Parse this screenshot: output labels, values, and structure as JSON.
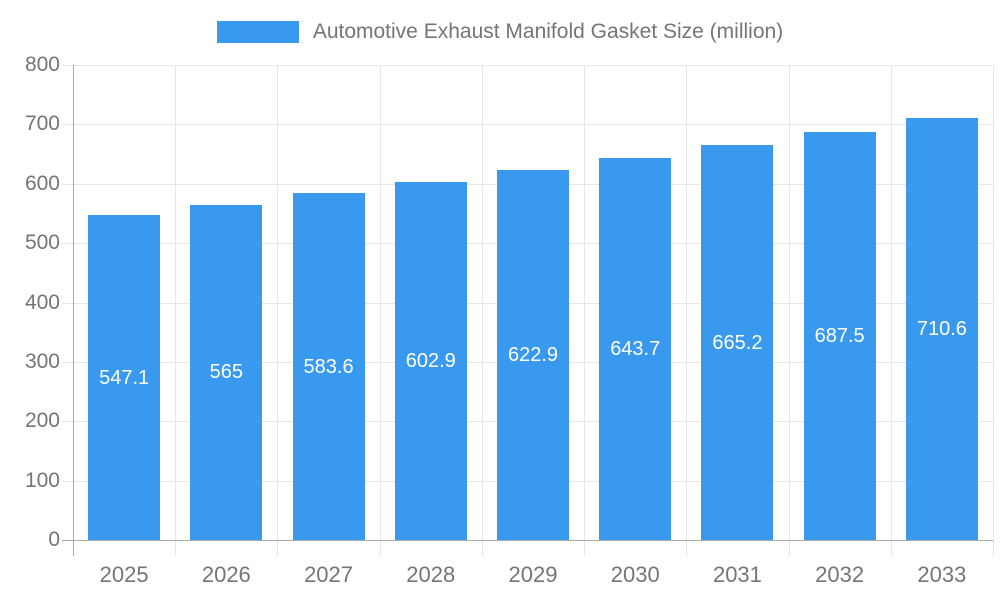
{
  "chart_data": {
    "type": "bar",
    "title": "Automotive Exhaust Manifold Gasket Size (million)",
    "categories": [
      "2025",
      "2026",
      "2027",
      "2028",
      "2029",
      "2030",
      "2031",
      "2032",
      "2033"
    ],
    "values": [
      547.1,
      565,
      583.6,
      602.9,
      622.9,
      643.7,
      665.2,
      687.5,
      710.6
    ],
    "value_labels": [
      "547.1",
      "565",
      "583.6",
      "602.9",
      "622.9",
      "643.7",
      "665.2",
      "687.5",
      "710.6"
    ],
    "xlabel": "",
    "ylabel": "",
    "ylim": [
      0,
      800
    ],
    "ytick_step": 100,
    "grid": true,
    "legend_position": "top-center",
    "colors": {
      "bar": "#3999EE",
      "grid": "#E6E6E6",
      "axis": "#ABABAB",
      "tick_text": "#757575",
      "value_text": "#FFFFFF",
      "background": "#FFFFFF"
    }
  }
}
